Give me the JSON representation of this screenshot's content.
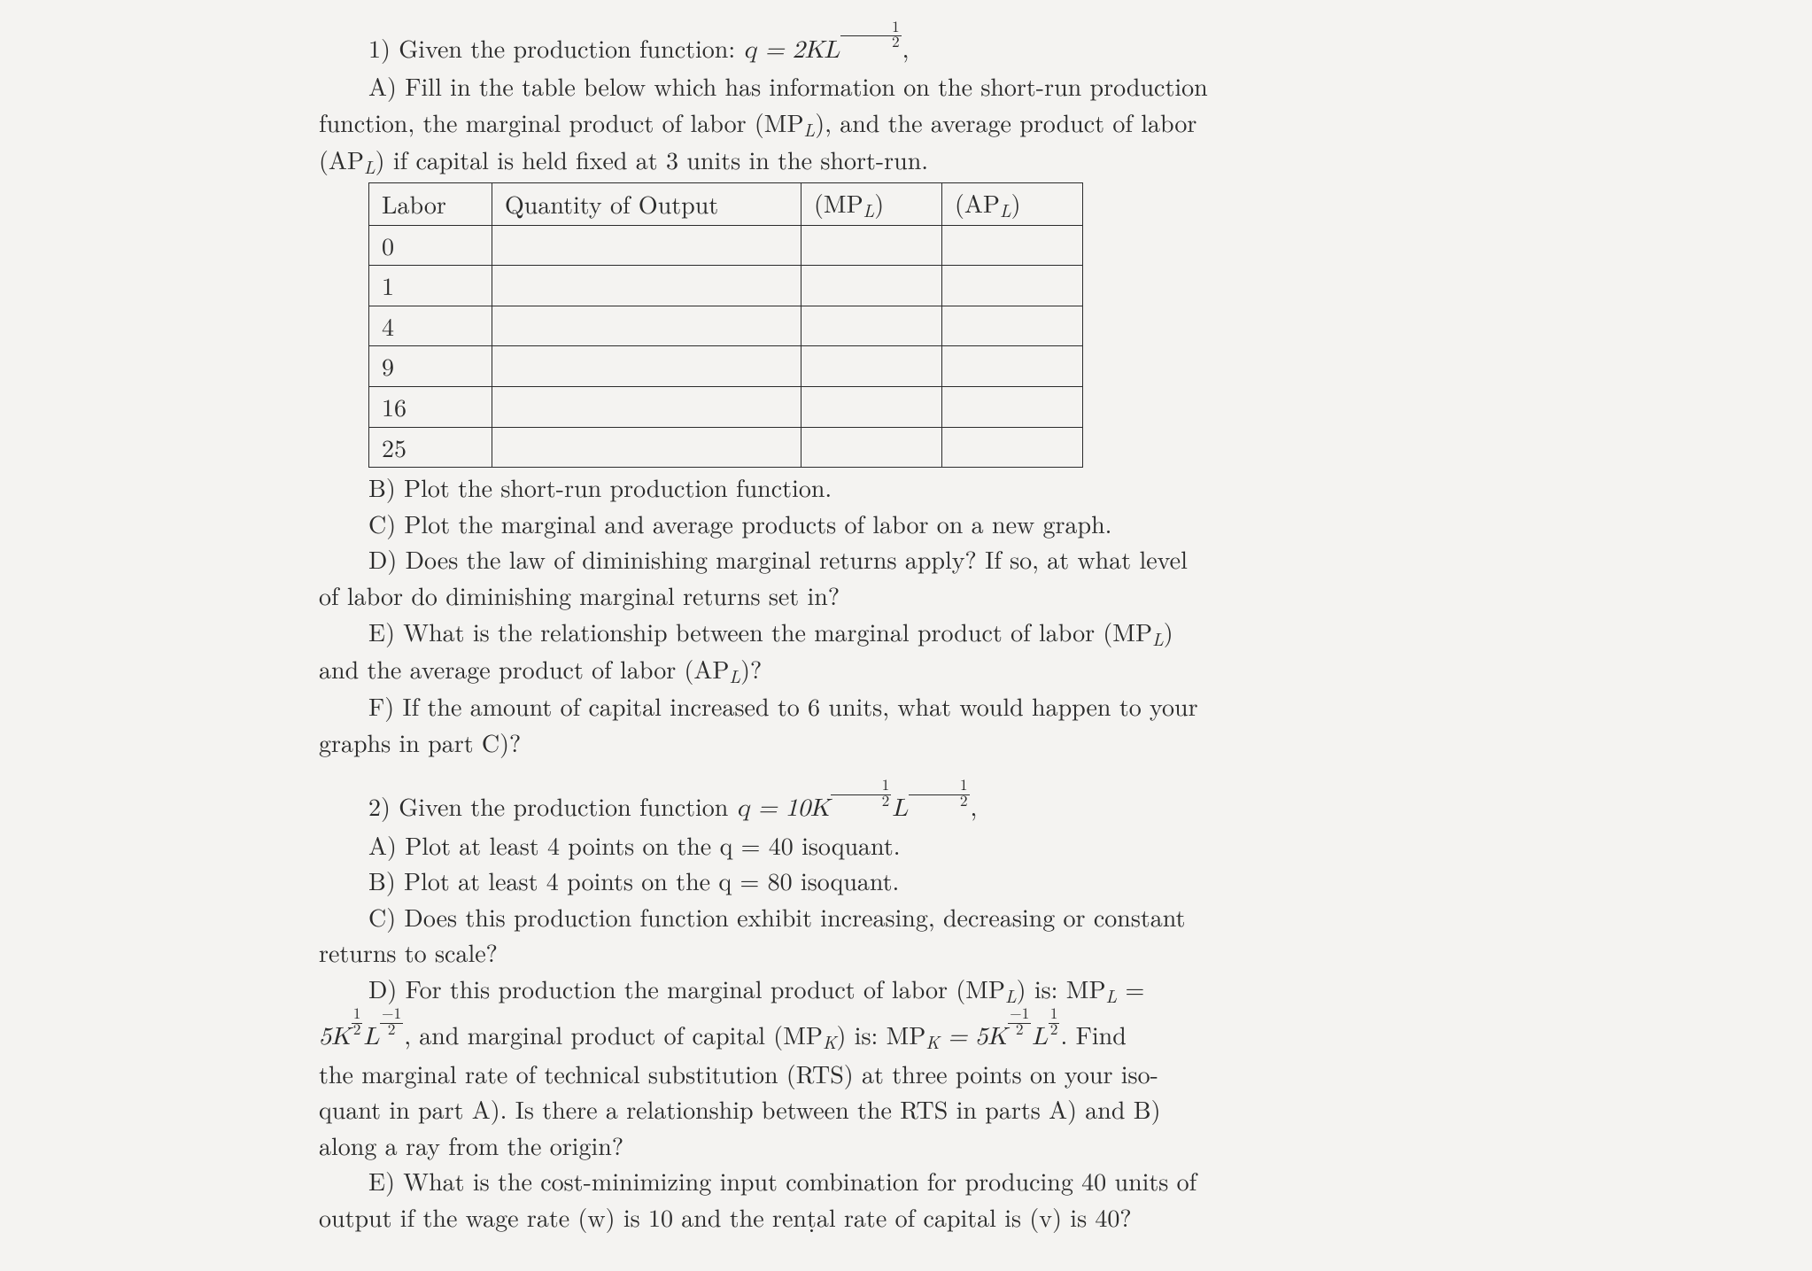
{
  "q1": {
    "intro": "1) Given the production function: ",
    "prod_fn_prefix": "q = 2KL",
    "prod_fn_exp_num": "1",
    "prod_fn_exp_den": "2",
    "intro_tail": ",",
    "A_line1": "A) Fill in the table below which has information on the short-run production",
    "A_line2_a": "function, the marginal product of labor (MP",
    "A_line2_b": "), and the average product of labor",
    "A_line3_a": "(AP",
    "A_line3_b": ") if capital is held fixed at 3 units in the short-run.",
    "table": {
      "headers": {
        "labor": "Labor",
        "q": "Quantity of Output",
        "mp_pre": "(MP",
        "mp_post": ")",
        "ap_pre": "(AP",
        "ap_post": ")"
      },
      "labor_vals": [
        "0",
        "1",
        "4",
        "9",
        "16",
        "25"
      ]
    },
    "B": "B) Plot the short-run production function.",
    "C": "C) Plot the marginal and average products of labor on a new graph.",
    "D_line1": "D) Does the law of diminishing marginal returns apply? If so, at what level",
    "D_line2": "of labor do diminishing marginal returns set in?",
    "E_line1_a": "E) What is the relationship between the marginal product of labor (MP",
    "E_line1_b": ")",
    "E_line2_a": "and the average product of labor (AP",
    "E_line2_b": ")?",
    "F_line1": "F) If the amount of capital increased to 6 units, what would happen to your",
    "F_line2": "graphs in part C)?"
  },
  "q2": {
    "intro_a": "2) Given the production function ",
    "intro_fn_prefix": "q = 10K",
    "intro_fn_mid": "L",
    "exp_num": "1",
    "exp_den": "2",
    "intro_tail": ",",
    "A": "A) Plot at least 4 points on the q = 40 isoquant.",
    "B": "B) Plot at least 4 points on the q = 80 isoquant.",
    "C_line1": "C) Does this production function exhibit increasing, decreasing or constant",
    "C_line2": "returns to scale?",
    "D_line1_a": "D) For this production the marginal product of labor (MP",
    "D_line1_b": ") is:  MP",
    "D_line1_c": " =",
    "D_line2_a": "5K",
    "D_line2_b": "L",
    "D_line2_c": ", and marginal product of capital (MP",
    "D_line2_d": ") is:  MP",
    "D_line2_e": " = 5K",
    "D_line2_f": "L",
    "D_line2_g": ". Find",
    "D_neg_exp_num": "−1",
    "D_neg_exp_den": "2",
    "D_line3": "the marginal rate of technical substitution (RTS) at three points on your iso-",
    "D_line4": "quant in part A). Is there a relationship between the RTS in parts A) and B)",
    "D_line5": "along a ray from the origin?",
    "E_line1": "E) What is the cost-minimizing input combination for producing 40 units of",
    "E_line2": "output if the wage rate (w) is 10 and the renṭal rate of capital is (v) is 40?"
  },
  "sub_L": "L",
  "sub_K": "K"
}
